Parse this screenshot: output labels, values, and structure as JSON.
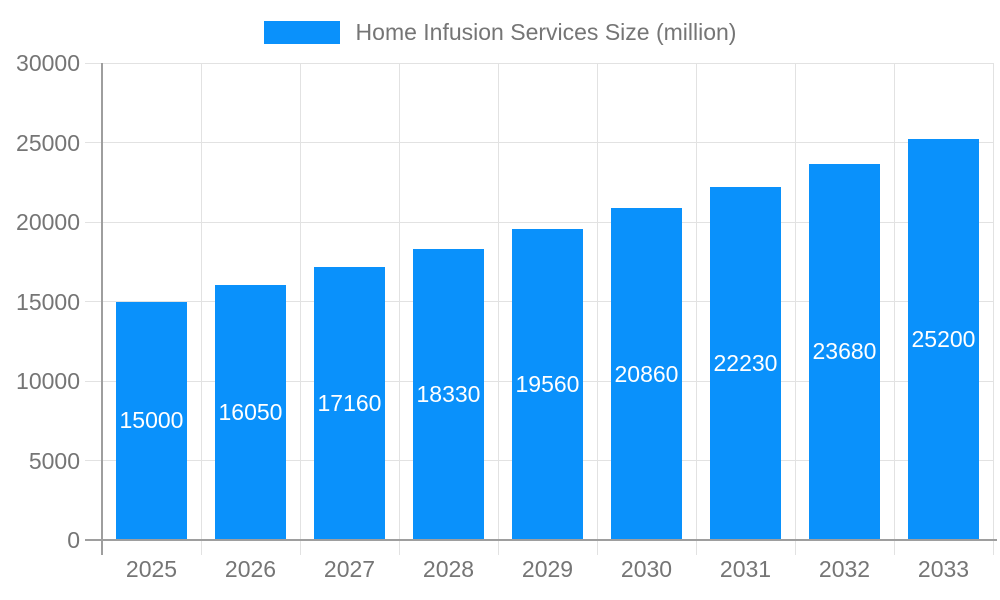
{
  "chart_data": {
    "type": "bar",
    "title": "",
    "legend": {
      "label": "Home Infusion Services Size (million)",
      "position": "top"
    },
    "categories": [
      "2025",
      "2026",
      "2027",
      "2028",
      "2029",
      "2030",
      "2031",
      "2032",
      "2033"
    ],
    "series": [
      {
        "name": "Home Infusion Services Size (million)",
        "values": [
          15000,
          16050,
          17160,
          18330,
          19560,
          20860,
          22230,
          23680,
          25200
        ]
      }
    ],
    "value_labels": [
      "15000",
      "16050",
      "17160",
      "18330",
      "19560",
      "20860",
      "22230",
      "23680",
      "25200"
    ],
    "value_label_position": "center-inside",
    "xlabel": "",
    "ylabel": "",
    "ylim": [
      0,
      30000
    ],
    "yticks": [
      "0",
      "5000",
      "10000",
      "15000",
      "20000",
      "25000",
      "30000"
    ],
    "grid": true,
    "colors": {
      "bar": "#0a91fb",
      "axis_text": "#757575",
      "value_text": "#ffffff",
      "grid_line": "#e2e2e2",
      "axis_line": "#9e9e9e",
      "background": "#ffffff"
    }
  }
}
